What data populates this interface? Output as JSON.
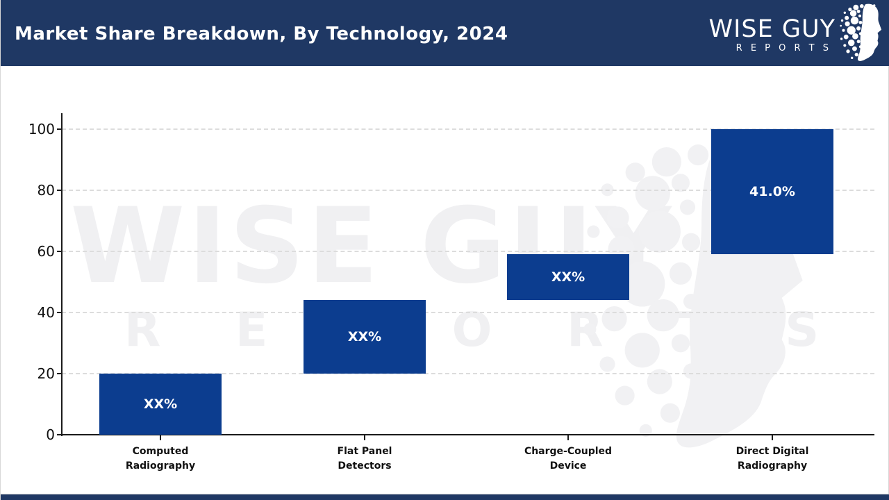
{
  "header": {
    "title": "Market Share Breakdown, By Technology, 2024",
    "bg_color": "#1f3864",
    "logo": {
      "line1": "WISE GUY",
      "line2": "R E P O R T S"
    }
  },
  "watermark": {
    "line1": "WISE GUY",
    "line2": "R E P O R T S"
  },
  "chart_data": {
    "type": "bar",
    "subtype": "waterfall",
    "title": "Market Share Breakdown, By Technology, 2024",
    "categories": [
      "Computed\nRadiography",
      "Flat Panel\nDetectors",
      "Charge-Coupled\nDevice",
      "Direct Digital\nRadiography"
    ],
    "segments": [
      {
        "category": "Computed Radiography",
        "label": "XX%",
        "start": 0,
        "end": 20
      },
      {
        "category": "Flat Panel Detectors",
        "label": "XX%",
        "start": 20,
        "end": 44
      },
      {
        "category": "Charge-Coupled Device",
        "label": "XX%",
        "start": 44,
        "end": 59
      },
      {
        "category": "Direct Digital Radiography",
        "label": "41.0%",
        "start": 59,
        "end": 100
      }
    ],
    "yticks": [
      0,
      20,
      40,
      60,
      80,
      100
    ],
    "ylim": [
      0,
      105
    ],
    "xlabel": "",
    "ylabel": "",
    "grid": true,
    "legend": false,
    "bar_color": "#0c3d8f",
    "grid_color": "#dcdcdc",
    "header_color": "#1f3864"
  }
}
